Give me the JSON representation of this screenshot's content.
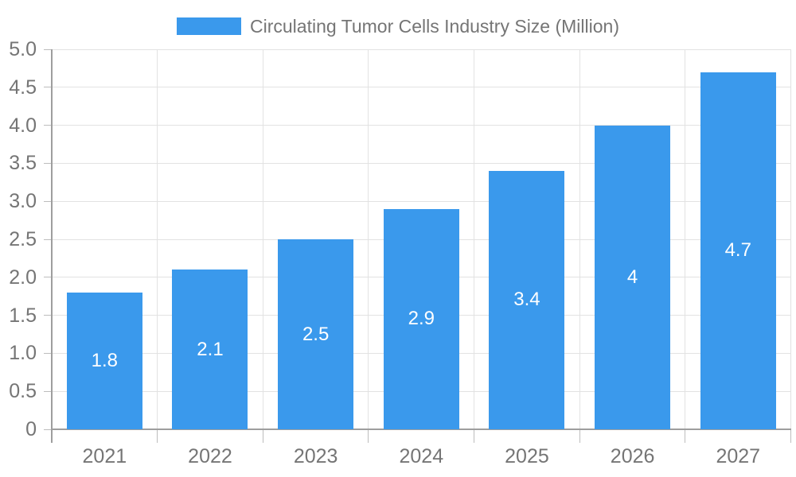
{
  "legend": {
    "label": "Circulating Tumor Cells Industry Size (Million)"
  },
  "chart_data": {
    "type": "bar",
    "title": "Circulating Tumor Cells Industry Size (Million)",
    "series_name": "Circulating Tumor Cells Industry Size (Million)",
    "categories": [
      "2021",
      "2022",
      "2023",
      "2024",
      "2025",
      "2026",
      "2027"
    ],
    "values": [
      1.8,
      2.1,
      2.5,
      2.9,
      3.4,
      4,
      4.7
    ],
    "value_labels": [
      "1.8",
      "2.1",
      "2.5",
      "2.9",
      "3.4",
      "4",
      "4.7"
    ],
    "xlabel": "",
    "ylabel": "",
    "ylim": [
      0,
      5
    ],
    "y_tick_step": 0.5,
    "y_tick_labels": [
      "0",
      "0.5",
      "1.0",
      "1.5",
      "2.0",
      "2.5",
      "3.0",
      "3.5",
      "4.0",
      "4.5",
      "5.0"
    ],
    "grid": true,
    "legend_position": "top",
    "colors": {
      "bar": "#3A99EC",
      "axis_line": "#9E9E9E",
      "gridline": "#E2E2E2",
      "tick_mark": "#BDBDBD",
      "tick_text": "#757575",
      "value_label_text": "#FFFFFF",
      "background": "#FFFFFF"
    }
  }
}
